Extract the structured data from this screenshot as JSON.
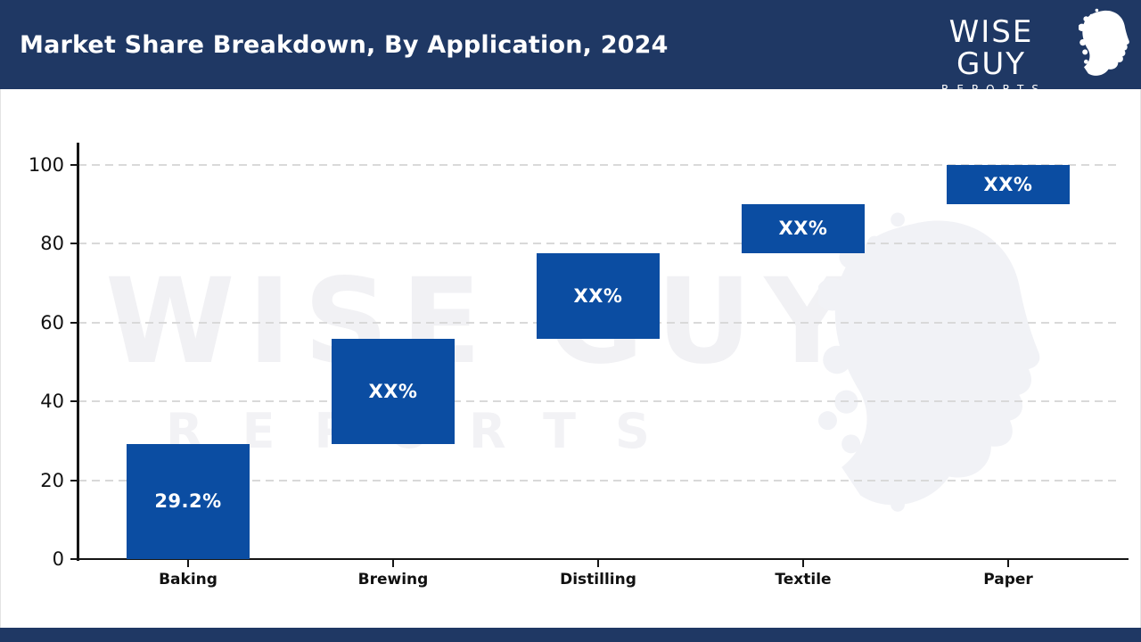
{
  "header": {
    "title": "Market Share Breakdown, By Application, 2024",
    "logo": {
      "line1": "WISE GUY",
      "line2": "REPORTS"
    }
  },
  "watermark": {
    "line1": "WISE GUY",
    "line2": "REPORTS"
  },
  "chart_data": {
    "type": "bar",
    "subtype": "waterfall",
    "title": "Market Share Breakdown, By Application, 2024",
    "xlabel": "",
    "ylabel": "",
    "categories": [
      "Baking",
      "Brewing",
      "Distilling",
      "Textile",
      "Paper"
    ],
    "bars": [
      {
        "category": "Baking",
        "start": 0,
        "end": 29.2,
        "label": "29.2%"
      },
      {
        "category": "Brewing",
        "start": 29.2,
        "end": 55.9,
        "label": "XX%"
      },
      {
        "category": "Distilling",
        "start": 55.9,
        "end": 77.6,
        "label": "XX%"
      },
      {
        "category": "Textile",
        "start": 77.6,
        "end": 89.9,
        "label": "XX%"
      },
      {
        "category": "Paper",
        "start": 89.9,
        "end": 99.8,
        "label": "XX%"
      }
    ],
    "yticks": [
      0,
      20,
      40,
      60,
      80,
      100
    ],
    "ylim": [
      0,
      105
    ],
    "grid": "horizontal-dashed",
    "legend": "none"
  },
  "colors": {
    "header_bg": "#1f3864",
    "footer_bg": "#1f3864",
    "bar": "#0b4da2",
    "bar_label": "#ffffff",
    "grid": "#d9d9d9",
    "axis": "#151515",
    "watermark": "#f1f1f4"
  }
}
